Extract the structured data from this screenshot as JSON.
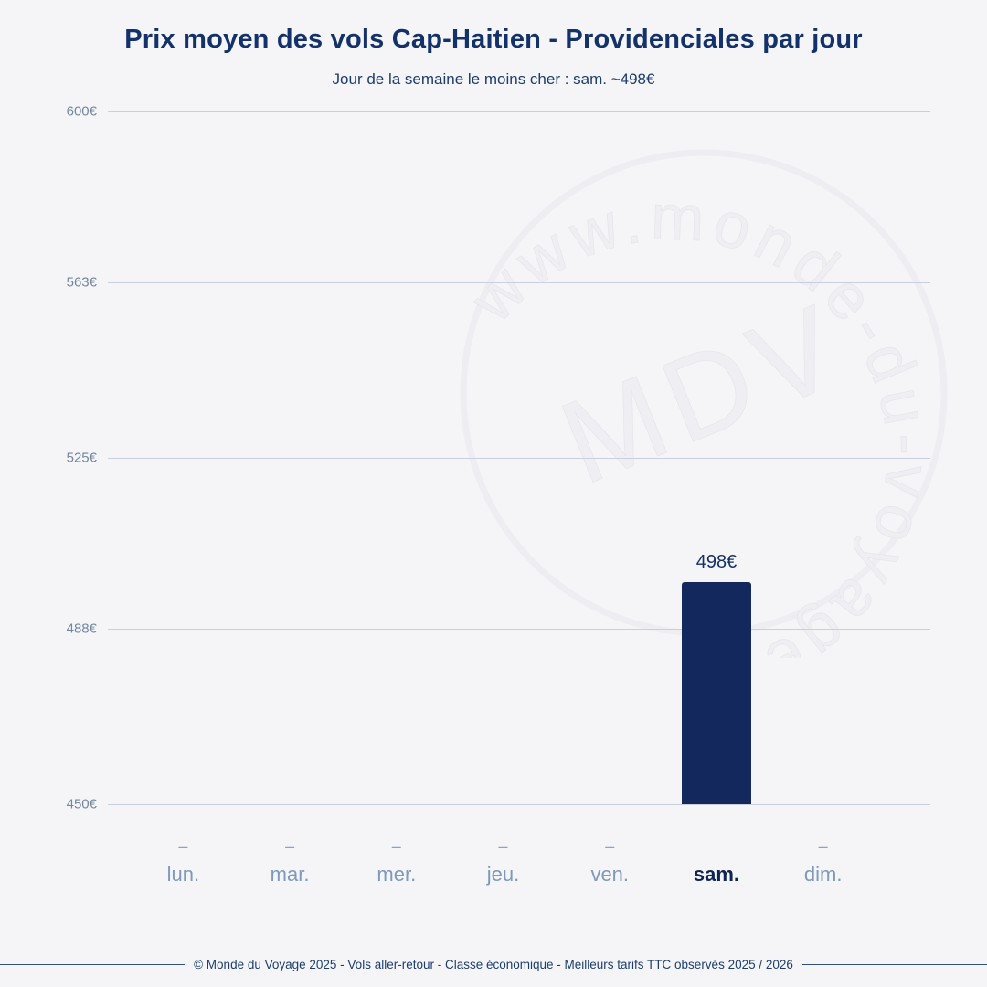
{
  "header": {
    "title": "Prix moyen des vols Cap-Haitien - Providenciales par jour",
    "subtitle": "Jour de la semaine le moins cher : sam. ~498€"
  },
  "chart_data": {
    "type": "bar",
    "title": "Prix moyen des vols Cap-Haitien - Providenciales par jour",
    "subtitle": "Jour de la semaine le moins cher : sam. ~498€",
    "categories": [
      "lun.",
      "mar.",
      "mer.",
      "jeu.",
      "ven.",
      "sam.",
      "dim."
    ],
    "values": [
      null,
      null,
      null,
      null,
      null,
      498,
      null
    ],
    "unit": "€",
    "highlight_category": "sam.",
    "empty_marker": "–",
    "ylim": [
      450,
      600
    ],
    "ytick_values": [
      600,
      563,
      525,
      488,
      450
    ],
    "ytick_labels": [
      "600€",
      "563€",
      "525€",
      "488€",
      "450€"
    ],
    "grid": true,
    "legend": false,
    "bar_color": "#13285c"
  },
  "watermark": {
    "circle_text": "www.monde-du-voyage.com",
    "center_text": "MDV"
  },
  "footer": {
    "text": "© Monde du Voyage 2025 - Vols aller-retour - Classe économique - Meilleurs tarifs TTC observés 2025 / 2026"
  },
  "colors": {
    "background": "#f5f5f7",
    "title": "#13316b",
    "subtitle": "#1c3d70",
    "axis_label": "#72879f",
    "day_label": "#7d99bb",
    "day_label_active": "#0e2453",
    "gridline": "#c9cfdb",
    "bar": "#13285c",
    "footer_text": "#1c3d70"
  }
}
